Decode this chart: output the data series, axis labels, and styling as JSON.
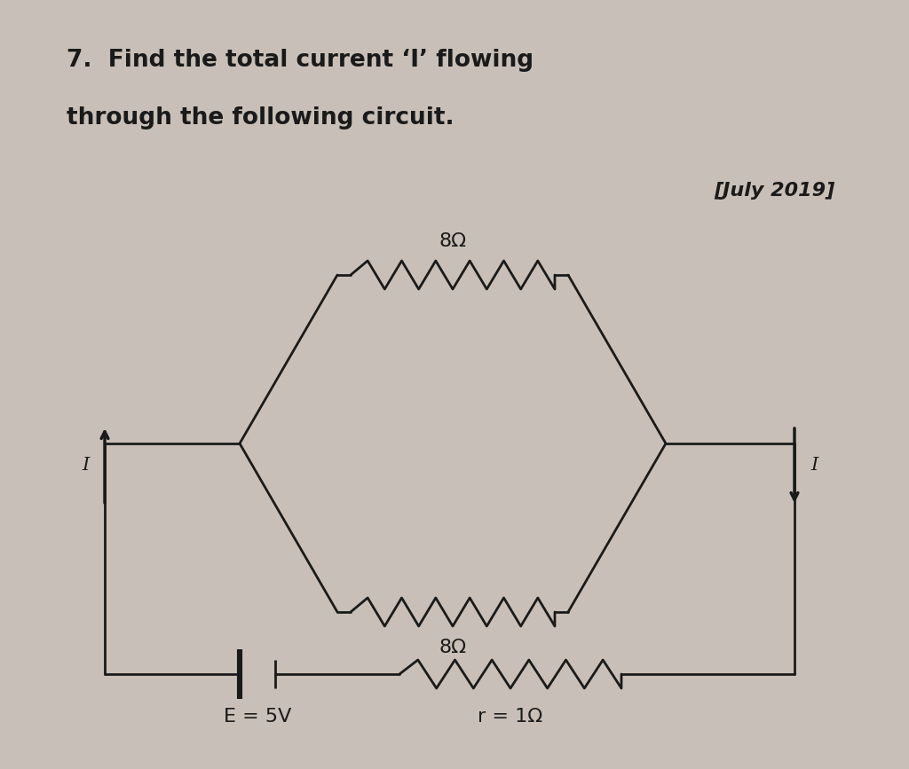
{
  "bg_color": "#c8c0b8",
  "text_color": "#1a1a1a",
  "title_line1": "7.  Find the total current ‘I’ flowing",
  "title_line2": "through the following circuit.",
  "reference": "[July 2019]",
  "label_8ohm_top": "8Ω",
  "label_8ohm_bot": "8Ω",
  "label_E": "E = 5V",
  "label_r": "r = 1Ω",
  "label_I_left": "I",
  "label_I_right": "I",
  "line_color": "#1a1a1a",
  "line_width": 2.0
}
